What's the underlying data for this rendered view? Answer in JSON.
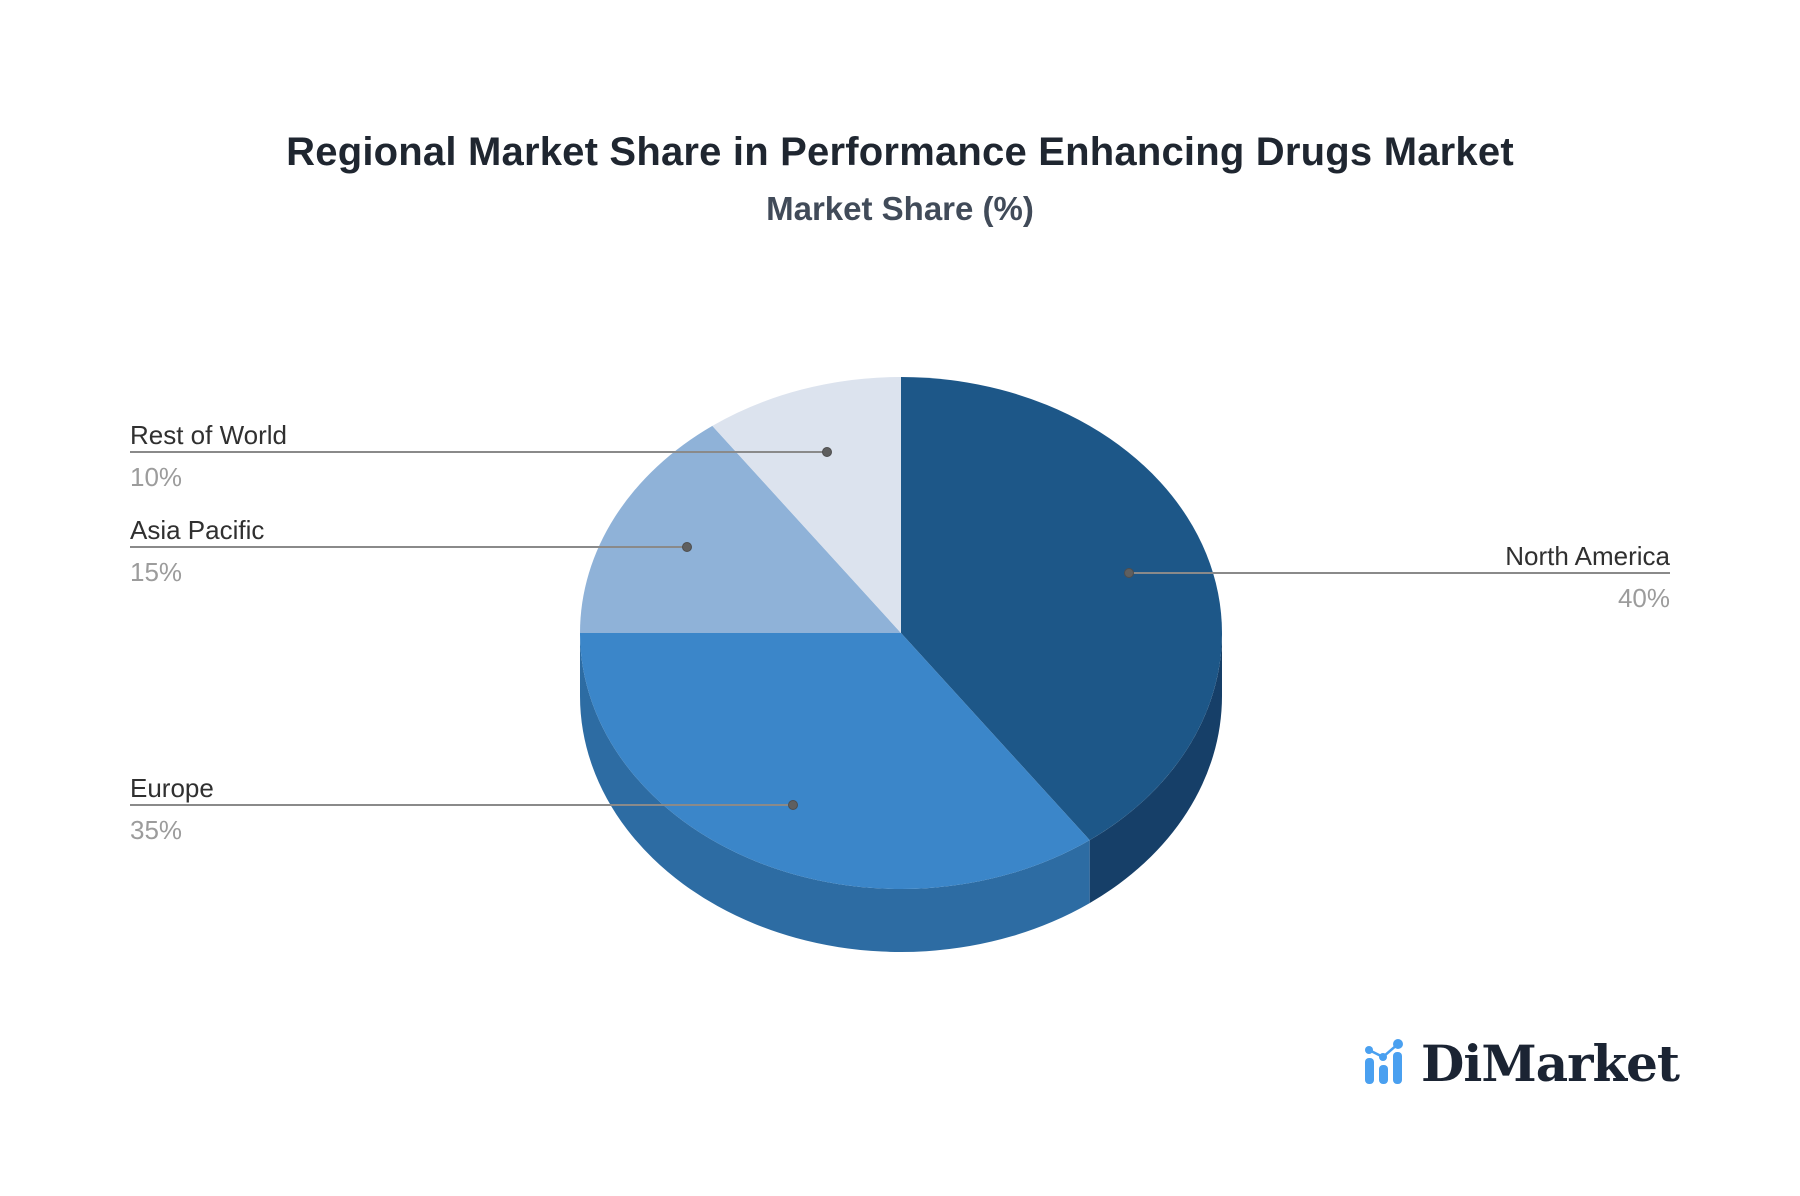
{
  "chart_data": {
    "type": "pie",
    "style": "3d-pie-with-callouts",
    "title": "Regional Market Share in Performance Enhancing Drugs Market",
    "subtitle": "Market Share (%)",
    "unit": "%",
    "start_angle": "12-oclock",
    "direction": "clockwise",
    "slices": [
      {
        "label": "North America",
        "value": 40,
        "display": "40%",
        "color": "#1d5788",
        "side_color": "#163f68"
      },
      {
        "label": "Europe",
        "value": 35,
        "display": "35%",
        "color": "#3b86c9",
        "side_color": "#2d6ca3"
      },
      {
        "label": "Asia Pacific",
        "value": 15,
        "display": "15%",
        "color": "#8fb2d8",
        "side_color": "#7599bd"
      },
      {
        "label": "Rest of World",
        "value": 10,
        "display": "10%",
        "color": "#dce3ee",
        "side_color": "#bcc5d4"
      }
    ],
    "callout_line_color": "#8a8a8a",
    "callout_dot_color": "#5f5f5f",
    "legend": "none",
    "grid": false
  },
  "brand": {
    "name": "DiMarket",
    "icon": "bar-line-chart-icon",
    "icon_color": "#4aa0f0",
    "text_color": "#1b2433"
  }
}
